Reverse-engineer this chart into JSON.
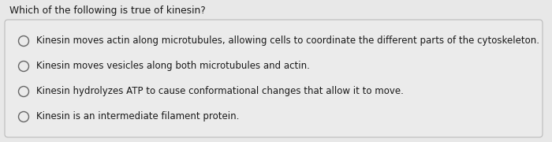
{
  "title": "Which of the following is true of kinesin?",
  "options": [
    "Kinesin moves actin along microtubules, allowing cells to coordinate the different parts of the cytoskeleton.",
    "Kinesin moves vesicles along both microtubules and actin.",
    "Kinesin hydrolyzes ATP to cause conformational changes that allow it to move.",
    "Kinesin is an intermediate filament protein."
  ],
  "title_fontsize": 8.8,
  "option_fontsize": 8.5,
  "bg_color": "#e8e8e8",
  "box_color": "#ebebeb",
  "border_color": "#bbbbbb",
  "text_color": "#1a1a1a",
  "circle_edge_color": "#666666",
  "title_color": "#1a1a1a"
}
